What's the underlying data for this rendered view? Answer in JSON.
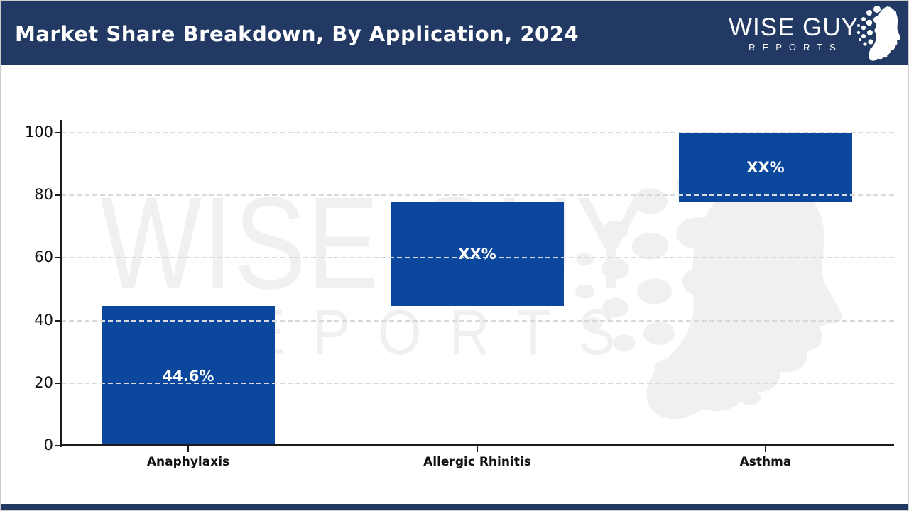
{
  "header": {
    "title": "Market Share Breakdown, By Application, 2024",
    "logo": {
      "line1": "WISE GUY",
      "line2": "REPORTS"
    }
  },
  "watermark": {
    "line1": "WISE GUY",
    "line2": "REPORTS"
  },
  "chart_data": {
    "type": "bar",
    "subtype": "waterfall",
    "title": "Market Share Breakdown, By Application, 2024",
    "categories": [
      "Anaphylaxis",
      "Allergic Rhinitis",
      "Asthma"
    ],
    "bars": [
      {
        "category": "Anaphylaxis",
        "start": 0,
        "end": 44.6,
        "label": "44.6%"
      },
      {
        "category": "Allergic Rhinitis",
        "start": 44.6,
        "end": 78,
        "label": "XX%"
      },
      {
        "category": "Asthma",
        "start": 78,
        "end": 100,
        "label": "XX%"
      }
    ],
    "yticks": [
      0,
      20,
      40,
      60,
      80,
      100
    ],
    "ylim": [
      0,
      104
    ],
    "xlabel": "",
    "ylabel": "",
    "grid": "horizontal dashed",
    "legend": "none"
  },
  "colors": {
    "header_bg": "#223a63",
    "bar_blue": "#0b479d",
    "grid": "#d9d9d9",
    "axis": "#1a1a1a",
    "bar_label_text": "#ffffff",
    "title_text": "#ffffff",
    "tick_text": "#111111",
    "watermark": "#f0f0f1",
    "page_border": "#cccccc"
  }
}
